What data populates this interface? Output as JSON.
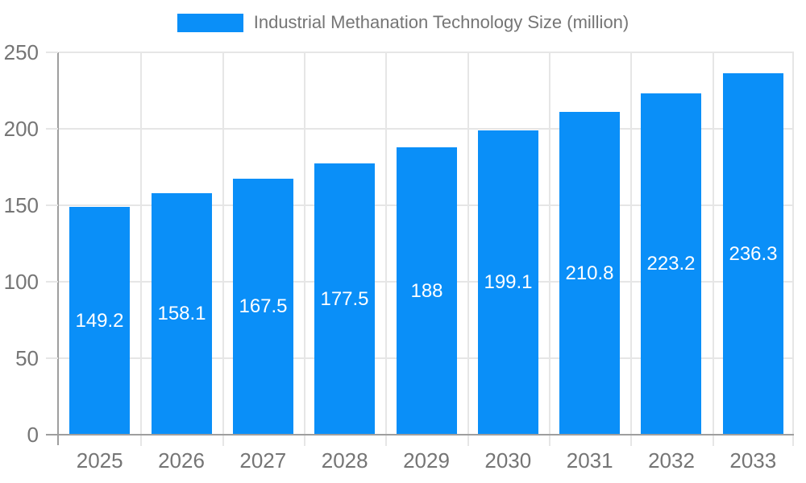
{
  "chart_data": {
    "type": "bar",
    "title": "Industrial Methanation Technology Size (million)",
    "categories": [
      "2025",
      "2026",
      "2027",
      "2028",
      "2029",
      "2030",
      "2031",
      "2032",
      "2033"
    ],
    "values": [
      149.2,
      158.1,
      167.5,
      177.5,
      188,
      199.1,
      210.8,
      223.2,
      236.3
    ],
    "xlabel": "",
    "ylabel": "",
    "ylim": [
      0,
      250
    ],
    "yticks": [
      0,
      50,
      100,
      150,
      200,
      250
    ],
    "grid": true,
    "legend_position": "top-center",
    "value_labels": "centered-inside-bars",
    "colors": {
      "bar": "#0a8ff8",
      "axis_line": "#9e9e9e",
      "gridline": "#e6e6e6",
      "tick": "#e6e6e6",
      "text": "#757575",
      "value_text": "#ffffff",
      "background": "#ffffff"
    }
  }
}
